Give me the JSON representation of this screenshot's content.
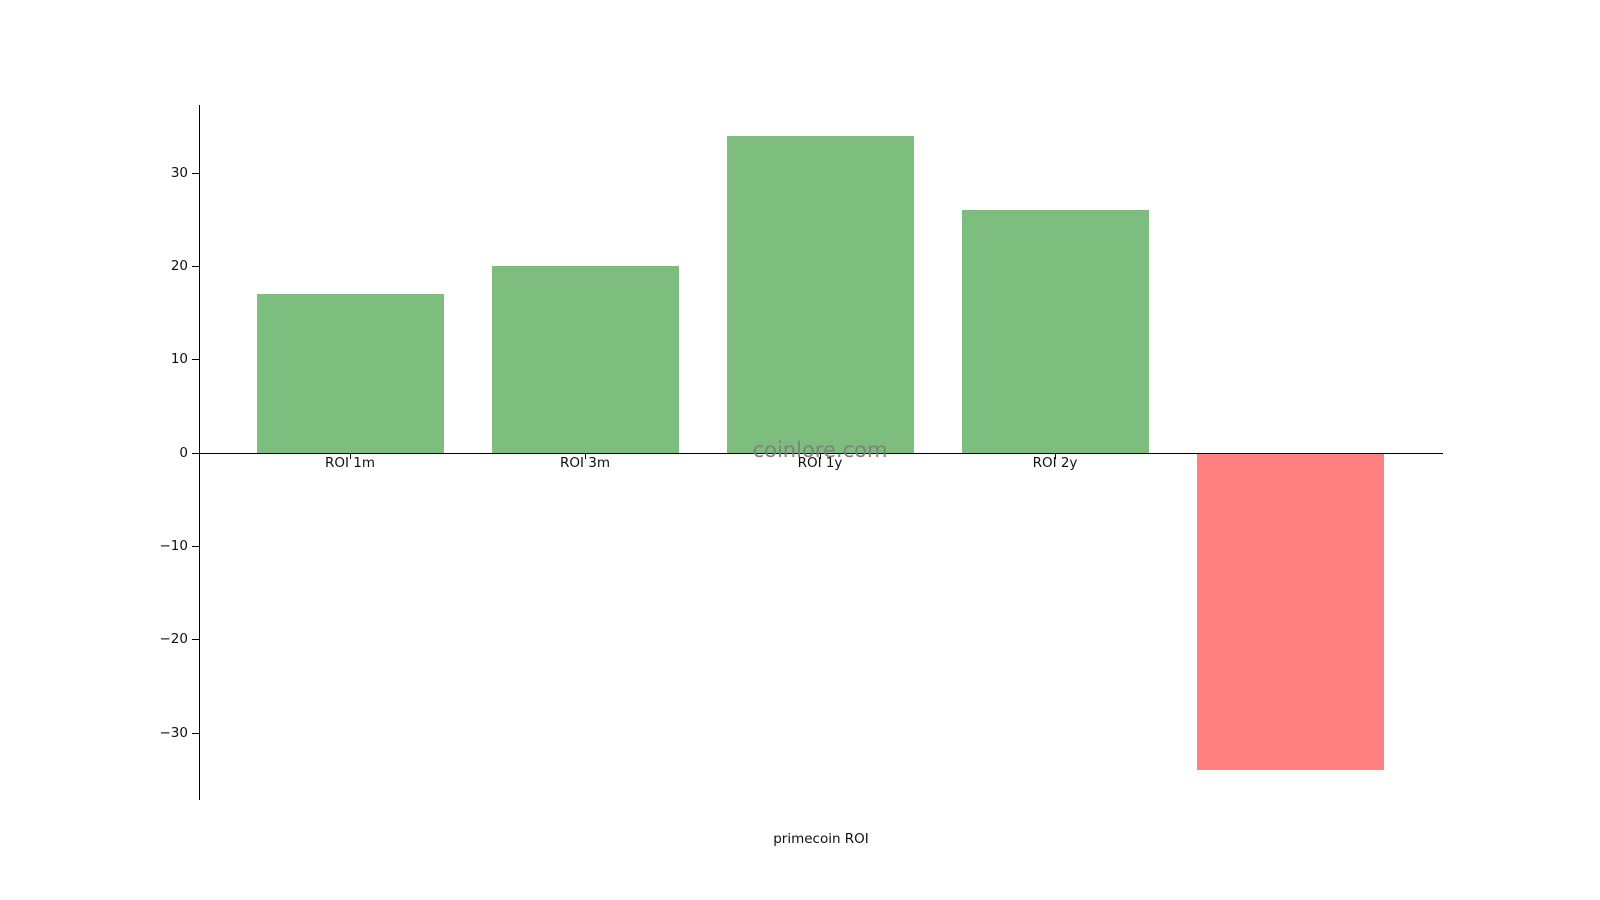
{
  "page": {
    "background": "#ffffff"
  },
  "watermark": {
    "text": "coinlore.com",
    "color": "#808080"
  },
  "chart_data": {
    "type": "bar",
    "title": "",
    "xlabel": "primecoin ROI",
    "ylabel": "",
    "categories": [
      "ROI 1m",
      "ROI 3m",
      "ROI 1y",
      "ROI 2y",
      ""
    ],
    "values": [
      17,
      20,
      34,
      26,
      -34
    ],
    "yticks": [
      30,
      20,
      10,
      0,
      -10,
      -20,
      -30
    ],
    "ytick_labels": [
      "30",
      "20",
      "10",
      "0",
      "−10",
      "−20",
      "−30"
    ],
    "ylim": [
      -37.4,
      37.4
    ],
    "grid": false,
    "legend": "none",
    "note": "fifth bar has no visible x label (hidden behind negative bar)",
    "colors": {
      "positive": "#7dbd7d",
      "negative": "#ff8080",
      "axis": "#000000",
      "tick_text": "#111111"
    }
  }
}
